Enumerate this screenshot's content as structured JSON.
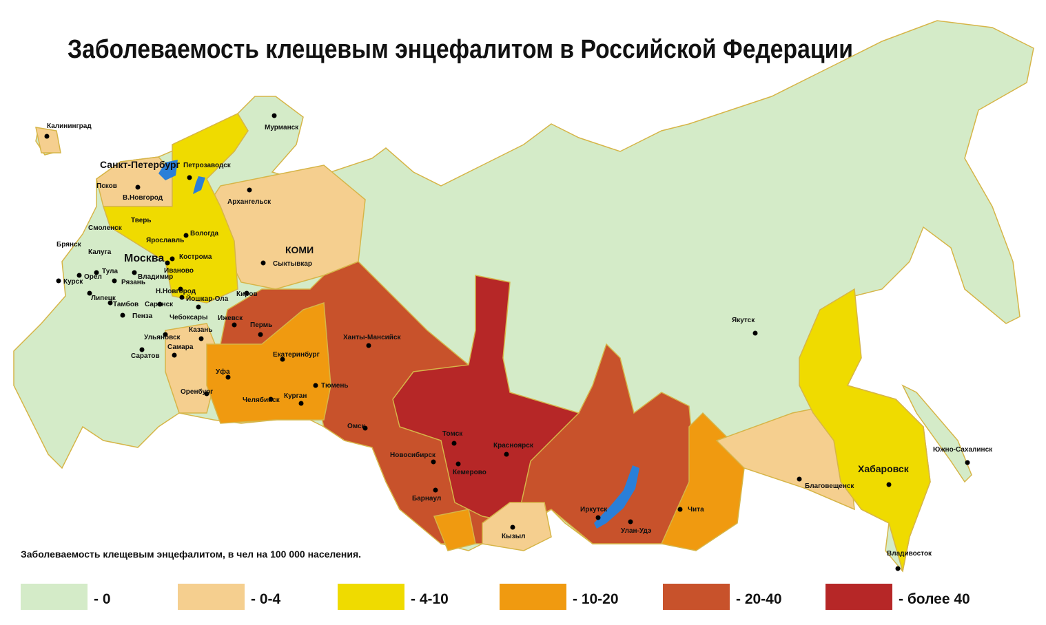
{
  "title": "Заболеваемость клещевым энцефалитом в Российской Федерации",
  "legend": {
    "caption": "Заболеваемость клещевым энцефалитом, в чел на 100 000 населения.",
    "items": [
      {
        "label": "- 0",
        "color": "#d4ebc8"
      },
      {
        "label": "- 0-4",
        "color": "#f5cf8f"
      },
      {
        "label": "- 4-10",
        "color": "#efdb00"
      },
      {
        "label": "- 10-20",
        "color": "#f09a10"
      },
      {
        "label": "- 20-40",
        "color": "#c8522b"
      },
      {
        "label": "- более 40",
        "color": "#b62727"
      }
    ]
  },
  "cities": [
    "Калининград",
    "Мурманск",
    "Санкт-Петербург",
    "Петрозаводск",
    "Псков",
    "В.Новгород",
    "Архангельск",
    "Тверь",
    "Смоленск",
    "Вологда",
    "Ярославль",
    "Брянск",
    "Калуга",
    "Москва",
    "Кострома",
    "КОМИ",
    "Сыктывкар",
    "Тула",
    "Иваново",
    "Орел",
    "Владимир",
    "Курск",
    "Рязань",
    "Липецк",
    "Н.Новгород",
    "Киров",
    "Йошкар-Ола",
    "Тамбов",
    "Саранск",
    "Пенза",
    "Чебоксары",
    "Ижевск",
    "Пермь",
    "Казань",
    "Ульяновск",
    "Ханты-Мансийск",
    "Якутск",
    "Самара",
    "Екатеринбург",
    "Саратов",
    "Уфа",
    "Тюмень",
    "Оренбург",
    "Челябинск",
    "Курган",
    "Омск",
    "Томск",
    "Красноярск",
    "Новосибирск",
    "Кемерово",
    "Южно-Сахалинск",
    "Хабаровск",
    "Благовещенск",
    "Барнаул",
    "Иркутск",
    "Чита",
    "Улан-Удэ",
    "Кызыл",
    "Владивосток"
  ]
}
